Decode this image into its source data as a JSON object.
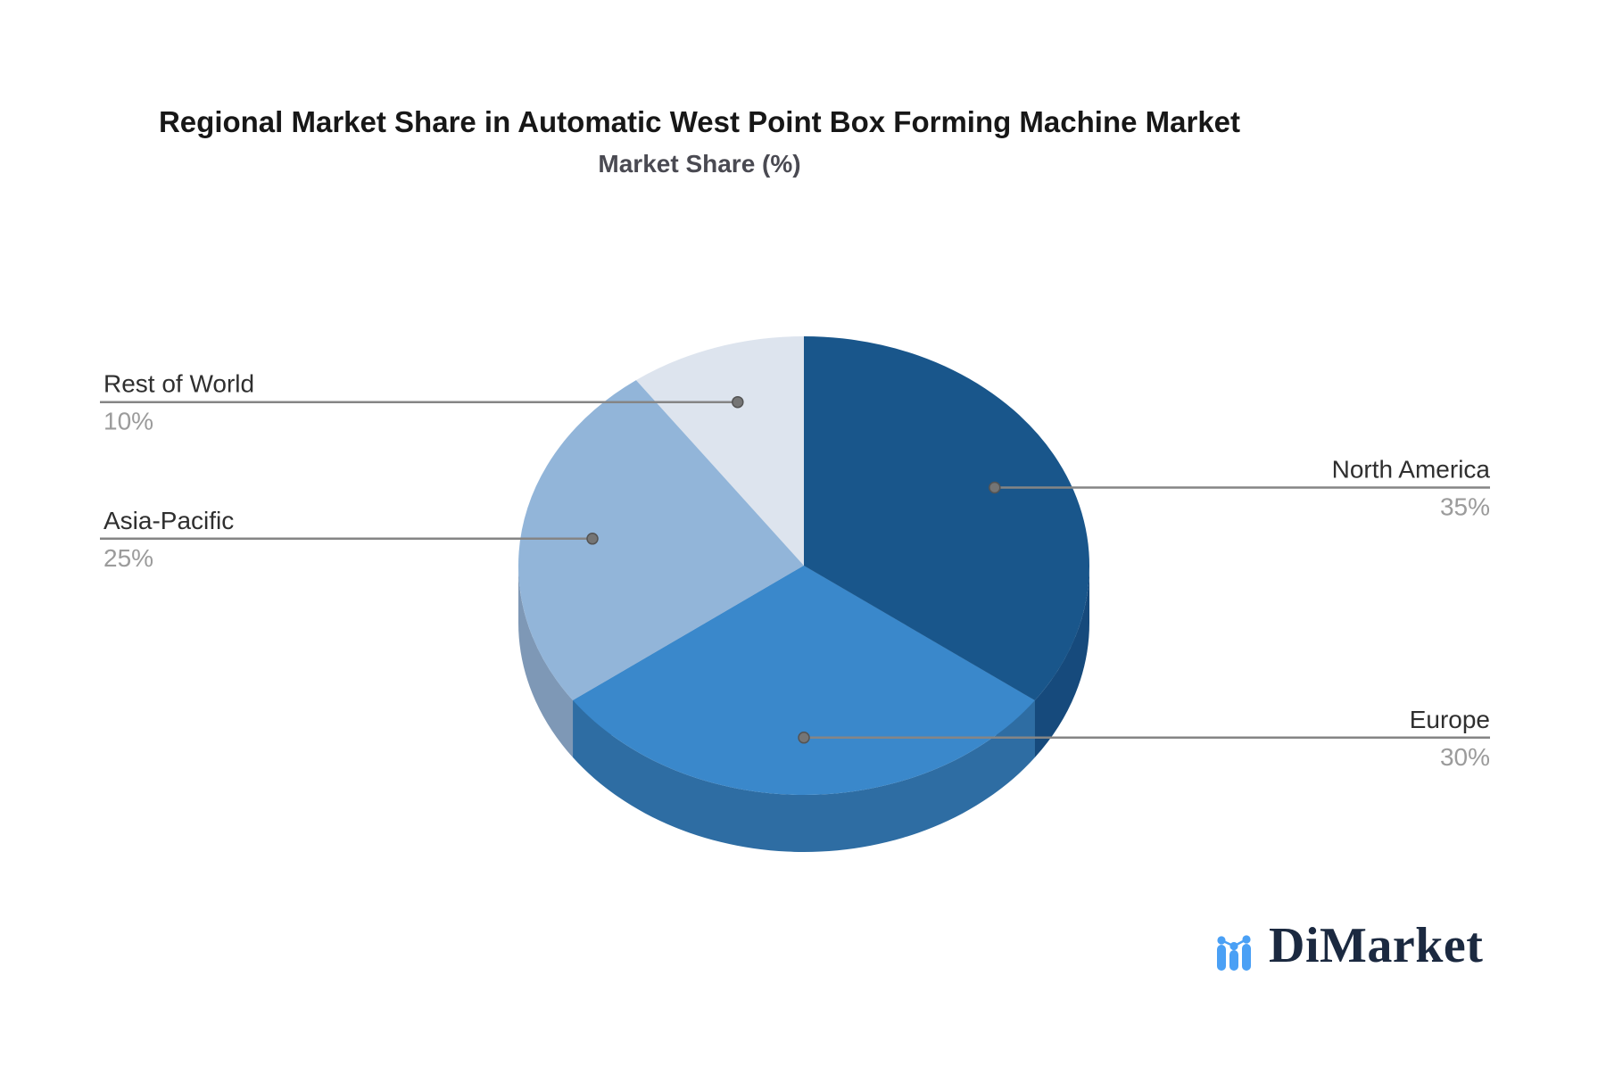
{
  "title": "Regional Market Share in Automatic West Point Box Forming Machine Market",
  "subtitle": "Market Share (%)",
  "chart_data": {
    "type": "pie",
    "title": "Regional Market Share in Automatic West Point Box Forming Machine Market",
    "subtitle": "Market Share (%)",
    "unit": "%",
    "style": "3d-pie",
    "start_angle_deg": 90,
    "direction": "clockwise",
    "legend_position": "connector-labels",
    "slices": [
      {
        "label": "North America",
        "value": 35,
        "display": "35%",
        "color": "#19568b",
        "shade": "#164a7c"
      },
      {
        "label": "Europe",
        "value": 30,
        "display": "30%",
        "color": "#3a88cb",
        "shade": "#2e6da3"
      },
      {
        "label": "Asia-Pacific",
        "value": 25,
        "display": "25%",
        "color": "#92b5d9",
        "shade": "#7e98b6"
      },
      {
        "label": "Rest of World",
        "value": 10,
        "display": "10%",
        "color": "#dde4ee",
        "shade": "#b9c6d8"
      }
    ],
    "label_color": "#2f2f2f",
    "value_color": "#9b9b9b",
    "connector_color": "#858585",
    "connector_dot_color": "#757575"
  },
  "logo": {
    "text": "DiMarket",
    "icon": "bar-line-chart-icon",
    "icon_color": "#4aa0f5",
    "text_color": "#1b2940"
  }
}
